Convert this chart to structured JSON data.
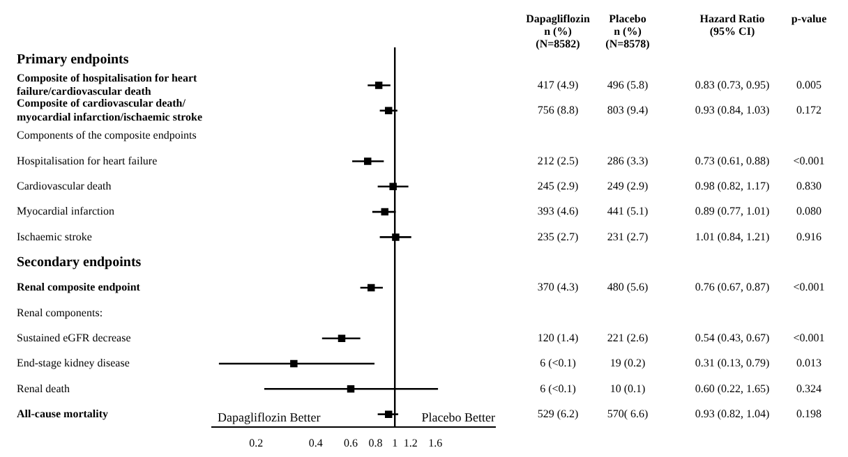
{
  "chart_data": {
    "type": "scatter",
    "orientation": "horizontal",
    "log": "x",
    "marker": "square",
    "categories": [
      null,
      "Composite of hospitalisation for heart failure/cardiovascular death",
      "Composite of cardiovascular death/ myocardial infarction/ischaemic stroke",
      null,
      "Hospitalisation for heart failure",
      "Cardiovascular death",
      "Myocardial infarction",
      "Ischaemic stroke",
      null,
      "Renal composite endpoint",
      null,
      "Sustained eGFR decrease",
      "End-stage kidney disease",
      "Renal death",
      "All-cause mortality"
    ],
    "values": [
      null,
      0.83,
      0.93,
      null,
      0.73,
      0.98,
      0.89,
      1.01,
      null,
      0.76,
      null,
      0.54,
      0.31,
      0.6,
      0.93
    ],
    "errors": [
      null,
      [
        0.73,
        0.95
      ],
      [
        0.84,
        1.03
      ],
      null,
      [
        0.61,
        0.88
      ],
      [
        0.82,
        1.17
      ],
      [
        0.77,
        1.01
      ],
      [
        0.84,
        1.21
      ],
      null,
      [
        0.67,
        0.87
      ],
      null,
      [
        0.43,
        0.67
      ],
      [
        0.13,
        0.79
      ],
      [
        0.22,
        1.65
      ],
      [
        0.82,
        1.04
      ]
    ],
    "value_labels": [
      null,
      "0.83 (0.73, 0.95)",
      "0.93 (0.84, 1.03)",
      null,
      "0.73 (0.61, 0.88)",
      "0.98 (0.82, 1.17)",
      "0.89 (0.77, 1.01)",
      "1.01 (0.84, 1.21)",
      null,
      "0.76 (0.67, 0.87)",
      null,
      "0.54 (0.43, 0.67)",
      "0.31 (0.13, 0.79)",
      "0.60 (0.22, 1.65)",
      "0.93 (0.82, 1.04)"
    ],
    "color": "#000000",
    "xlim": [
      0.12,
      3.2
    ],
    "xticks": [
      0.2,
      0.4,
      0.6,
      0.8,
      1,
      1.2,
      1.6
    ],
    "ref_lines": [
      {
        "axis": "x",
        "value": 1
      }
    ],
    "annotations": [
      "Dapagliflozin\nn (%)\n(N=8582)",
      "Placebo\nn (%)\n(N=8578)",
      "Hazard Ratio\n(95% CI)",
      "p-value",
      "Dapagliflozin Better",
      "Placebo Better",
      "Primary endpoints",
      "Components of the composite endpoints",
      "Secondary endpoints",
      "Renal components:",
      "417 (4.9)",
      "496 (5.8)",
      "0.005",
      "756 (8.8)",
      "803 (9.4)",
      "0.172",
      "212 (2.5)",
      "286 (3.3)",
      "<0.001",
      "245 (2.9)",
      "249 (2.9)",
      "0.830",
      "393 (4.6)",
      "441 (5.1)",
      "0.080",
      "235 (2.7)",
      "231 (2.7)",
      "0.916",
      "370 (4.3)",
      "480 (5.6)",
      "<0.001",
      "120 (1.4)",
      "221 (2.6)",
      "<0.001",
      "6 (<0.1)",
      "19 (0.2)",
      "0.013",
      "6 (<0.1)",
      "10 (0.1)",
      "0.324",
      "529 (6.2)",
      "570( 6.6)",
      "0.198"
    ]
  }
}
